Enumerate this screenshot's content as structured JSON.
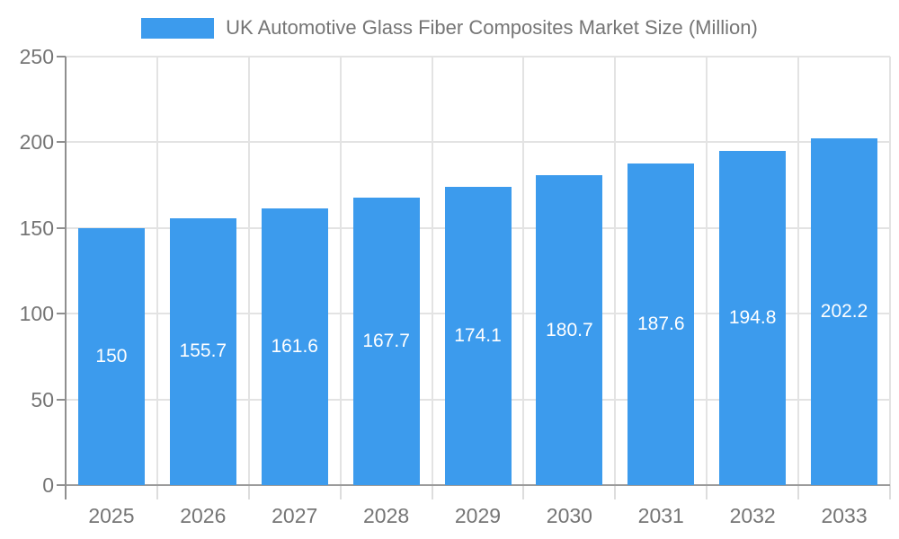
{
  "chart_data": {
    "type": "bar",
    "title": "UK Automotive Glass Fiber Composites Market Size (Million)",
    "legend": [
      "UK Automotive Glass Fiber Composites Market Size (Million)"
    ],
    "legend_position": "top-center",
    "categories": [
      "2025",
      "2026",
      "2027",
      "2028",
      "2029",
      "2030",
      "2031",
      "2032",
      "2033"
    ],
    "values": [
      150,
      155.7,
      161.6,
      167.7,
      174.1,
      180.7,
      187.6,
      194.8,
      202.2
    ],
    "value_labels": [
      "150",
      "155.7",
      "161.6",
      "167.7",
      "174.1",
      "180.7",
      "187.6",
      "194.8",
      "202.2"
    ],
    "value_label_position": "inside-center",
    "xlabel": "",
    "ylabel": "",
    "ylim": [
      0,
      250
    ],
    "ytick_step": 50,
    "yticks": [
      "0",
      "50",
      "100",
      "150",
      "200",
      "250"
    ],
    "grid": true,
    "colors": {
      "bar": "#3C9BED",
      "value_label": "#ffffff",
      "axis_label": "#757575",
      "grid_line": "#e3e3e3",
      "axis_line": "#9b9b9b",
      "background": "#ffffff"
    }
  }
}
